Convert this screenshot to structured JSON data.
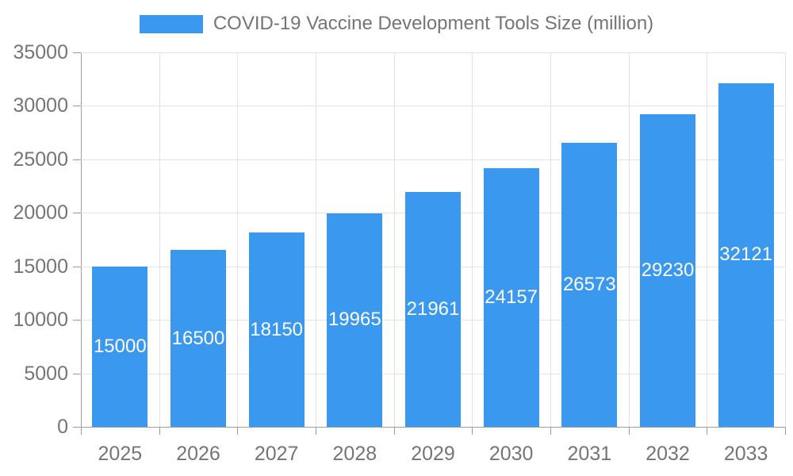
{
  "chart_data": {
    "type": "bar",
    "title": "COVID-19 Vaccine Development Tools Size (million)",
    "legend": {
      "position": "top",
      "label": "COVID-19 Vaccine Development Tools Size (million)"
    },
    "categories": [
      "2025",
      "2026",
      "2027",
      "2028",
      "2029",
      "2030",
      "2031",
      "2032",
      "2033"
    ],
    "values": [
      15000,
      16500,
      18150,
      19965,
      21961,
      24157,
      26573,
      29230,
      32121
    ],
    "data_labels_shown": true,
    "xlabel": "",
    "ylabel": "",
    "ylim": [
      0,
      35000
    ],
    "ytick_step": 5000,
    "yticks": [
      0,
      5000,
      10000,
      15000,
      20000,
      25000,
      30000,
      35000
    ],
    "grid": true,
    "colors": {
      "bar": "#3A99EE",
      "grid": "#E3E3E3",
      "axis": "#9E9E9E",
      "tick_text": "#757575",
      "bar_label": "#FFFFFF",
      "background": "#FFFFFF"
    }
  }
}
